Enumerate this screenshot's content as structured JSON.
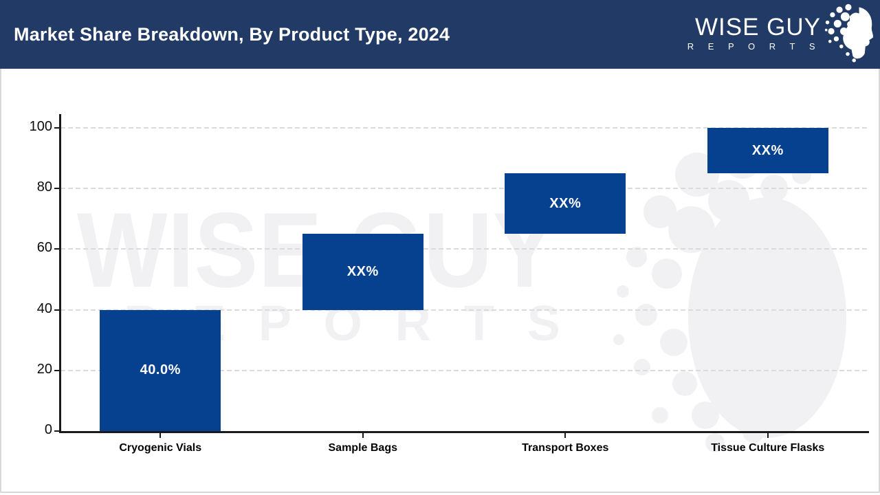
{
  "header": {
    "title": "Market Share Breakdown, By Product Type, 2024",
    "bg_color": "#213a66",
    "logo": {
      "line1": "WISE GUY",
      "line2": "R E P O R T S"
    }
  },
  "watermark": {
    "line1": "WISE GUY",
    "line2": "R E P O R T S"
  },
  "chart_data": {
    "type": "bar",
    "subtype": "floating-range-waterfall",
    "title": "Market Share Breakdown, By Product Type, 2024",
    "categories": [
      "Cryogenic Vials",
      "Sample Bags",
      "Transport Boxes",
      "Tissue Culture Flasks"
    ],
    "series": [
      {
        "name": "Market Share",
        "values": [
          40,
          25,
          20,
          15
        ],
        "ranges": [
          [
            0,
            40
          ],
          [
            40,
            65
          ],
          [
            65,
            85
          ],
          [
            85,
            100
          ]
        ],
        "bar_labels": [
          "40.0%",
          "XX%",
          "XX%",
          "XX%"
        ]
      }
    ],
    "xlabel": "",
    "ylabel": "",
    "ylim": [
      0,
      100
    ],
    "yticks": [
      0,
      20,
      40,
      60,
      80,
      100
    ],
    "grid": "horizontal-dashed",
    "gridline_color": "#dbdbdb",
    "bar_color": "#06418f",
    "bar_label_color": "#ffffff",
    "axis_color": "#1a1a1a"
  }
}
